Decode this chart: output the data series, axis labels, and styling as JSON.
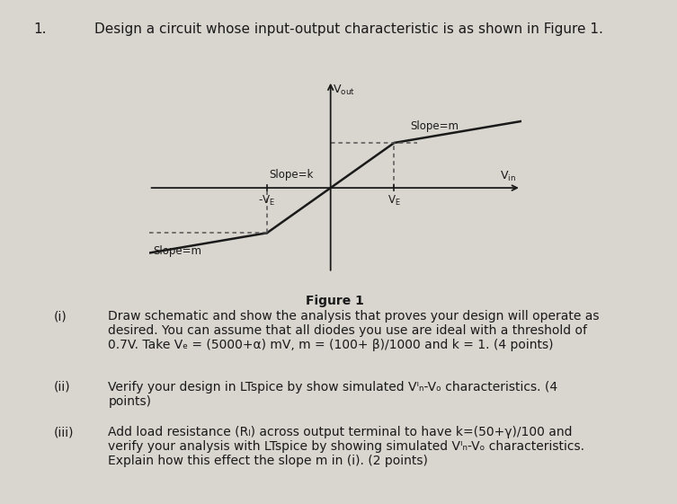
{
  "title_number": "1.",
  "title_text": "Design a circuit whose input-output characteristic is as shown in Figure 1.",
  "fig_label": "Figure 1",
  "vout_label": "V$_\\mathrm{out}$",
  "vin_label": "V$_\\mathrm{in}$",
  "ve_label": "V$_\\mathrm{E}$",
  "neg_ve_label": "-V$_\\mathrm{E}$",
  "slope_m_upper": "Slope=m",
  "slope_k_label": "Slope=k",
  "slope_m_lower": "Slope=m",
  "VE": 1.4,
  "k_slope": 2.8,
  "m_slope": 0.18,
  "flat_level_upper": 1.05,
  "flat_level_lower": -1.05,
  "x_range": [
    -4.0,
    4.2
  ],
  "y_range": [
    -2.2,
    2.5
  ],
  "background_color": "#d9d5cf",
  "line_color": "#1a1a1a",
  "dashed_color": "#555555",
  "text_color": "#1a1a1a",
  "item_i_label": "(i)",
  "item_i_text": "Draw schematic and show the analysis that proves your design will operate as\ndesired. You can assume that all diodes you use are ideal with a threshold of\n0.7V. Take Vₑ = (5000+α) mV, m = (100+ β)/1000 and k = 1. (4 points)",
  "item_ii_label": "(ii)",
  "item_ii_text": "Verify your design in LTspice by show simulated Vᴵₙ-Vₒ characteristics. (4\npoints)",
  "item_iii_label": "(iii)",
  "item_iii_text": "Add load resistance (Rₗ) across output terminal to have k=(50+γ)/100 and\nverify your analysis with LTspice by showing simulated Vᴵₙ-Vₒ characteristics.\nExplain how this effect the slope m in (i). (2 points)"
}
